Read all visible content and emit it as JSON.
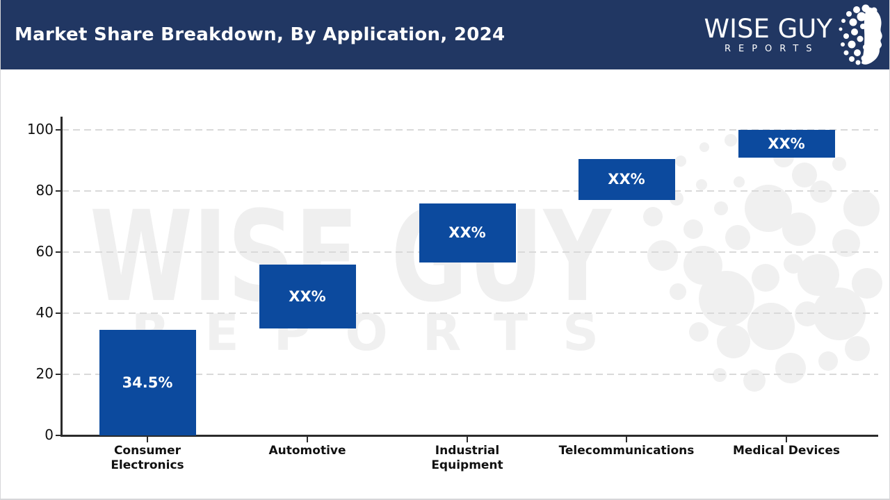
{
  "header": {
    "title": "Market Share Breakdown, By Application, 2024",
    "logo": {
      "wordmark": "WISE GUY",
      "subtext": "REPORTS"
    }
  },
  "watermark": {
    "wordmark": "WISE GUY",
    "subtext": "REPORTS"
  },
  "chart_data": {
    "type": "bar",
    "variant": "waterfall",
    "title": "Market Share Breakdown, By Application, 2024",
    "xlabel": "",
    "ylabel": "",
    "categories": [
      "Consumer Electronics",
      "Automotive",
      "Industrial Equipment",
      "Telecommunications",
      "Medical Devices"
    ],
    "category_labels": [
      "Consumer\nElectronics",
      "Automotive",
      "Industrial\nEquipment",
      "Telecommunications",
      "Medical Devices"
    ],
    "series": [
      {
        "category": "Consumer Electronics",
        "start": 0,
        "end": 34.5,
        "label": "34.5%"
      },
      {
        "category": "Automotive",
        "start": 35,
        "end": 56,
        "label": "XX%"
      },
      {
        "category": "Industrial Equipment",
        "start": 56.5,
        "end": 76,
        "label": "XX%"
      },
      {
        "category": "Telecommunications",
        "start": 77,
        "end": 90.5,
        "label": "XX%"
      },
      {
        "category": "Medical Devices",
        "start": 91,
        "end": 100,
        "label": "XX%"
      }
    ],
    "yticks": [
      0,
      20,
      40,
      60,
      80,
      100
    ],
    "ylim": [
      0,
      105
    ],
    "grid": "dashed-horizontal",
    "legend": "none",
    "bar_color": "#0c4a9e",
    "bar_label_color": "#ffffff"
  },
  "colors": {
    "header_bg": "#213763",
    "header_text": "#ffffff",
    "axis": "#2b2b2b",
    "tick_text": "#111111",
    "grid": "#d9d9d9",
    "watermark": "#efefef",
    "page_border": "#d6d6d9"
  }
}
